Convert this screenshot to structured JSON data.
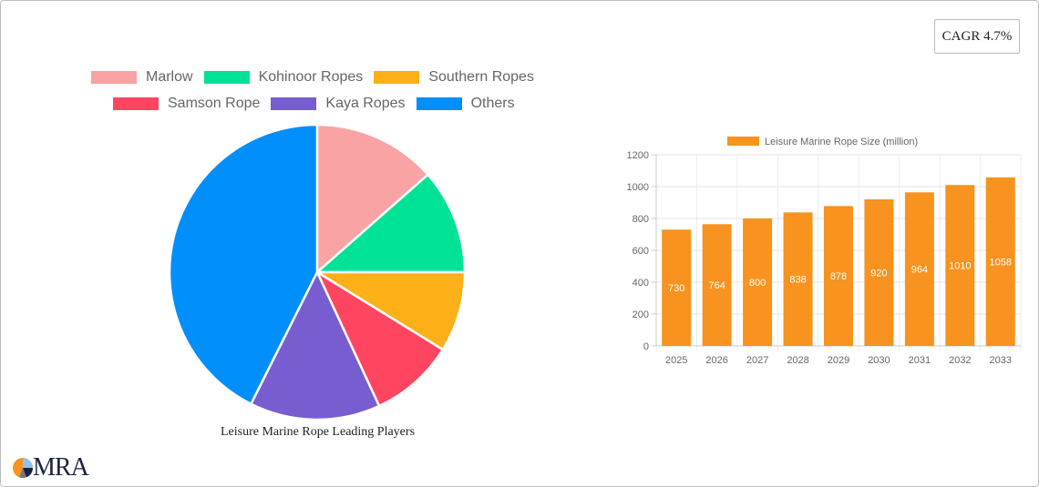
{
  "badge": {
    "cagr_label": "CAGR 4.7%"
  },
  "pie_caption": "Leisure Marine Rope Leading Players",
  "logo": {
    "text": "MRA"
  },
  "bar_legend_label": "Leisure Marine Rope Size (million)",
  "legend": [
    {
      "label": "Marlow",
      "color": "#F9A3A4"
    },
    {
      "label": "Kohinoor Ropes",
      "color": "#00E396"
    },
    {
      "label": "Southern Ropes",
      "color": "#FEB019"
    },
    {
      "label": "Samson Rope",
      "color": "#FF4560"
    },
    {
      "label": "Kaya Ropes",
      "color": "#775DD0"
    },
    {
      "label": "Others",
      "color": "#008FFB"
    }
  ],
  "chart_data": [
    {
      "type": "pie",
      "title": "Leisure Marine Rope Leading Players",
      "categories": [
        "Marlow",
        "Kohinoor Ropes",
        "Southern Ropes",
        "Samson Rope",
        "Kaya Ropes",
        "Others"
      ],
      "values": [
        13.5,
        11.5,
        8.8,
        9.3,
        14.3,
        42.6
      ],
      "colors": [
        "#F9A3A4",
        "#00E396",
        "#FEB019",
        "#FF4560",
        "#775DD0",
        "#008FFB"
      ],
      "legend_position": "top"
    },
    {
      "type": "bar",
      "title": "",
      "legend": [
        "Leisure Marine Rope Size (million)"
      ],
      "categories": [
        "2025",
        "2026",
        "2027",
        "2028",
        "2029",
        "2030",
        "2031",
        "2032",
        "2033"
      ],
      "values": [
        730,
        764,
        800,
        838,
        878,
        920,
        964,
        1010,
        1058
      ],
      "color": "#F7931E",
      "xlabel": "",
      "ylabel": "",
      "ylim": [
        0,
        1200
      ],
      "yticks": [
        0,
        200,
        400,
        600,
        800,
        1000,
        1200
      ],
      "grid": true,
      "data_labels": true
    }
  ]
}
